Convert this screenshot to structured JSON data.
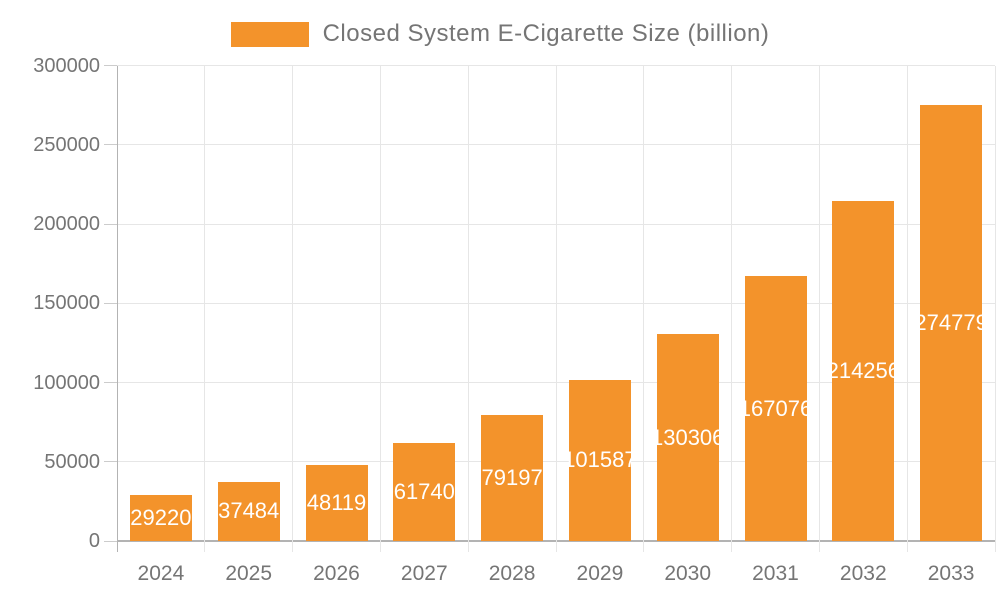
{
  "legend": {
    "label": "Closed System E-Cigarette Size (billion)"
  },
  "colors": {
    "bar": "#F3932B",
    "axis_text": "#757575",
    "gridline": "#E6E6E6",
    "axis_line": "#B3B3B3",
    "tick": "#CCCCCC",
    "bar_label": "#FFFFFF",
    "background": "#FFFFFF"
  },
  "chart_data": {
    "type": "bar",
    "title": "",
    "series_name": "Closed System E-Cigarette Size (billion)",
    "categories": [
      "2024",
      "2025",
      "2026",
      "2027",
      "2028",
      "2029",
      "2030",
      "2031",
      "2032",
      "2033"
    ],
    "values": [
      29220,
      37484,
      48119,
      61740,
      79197,
      101587,
      130306,
      167076,
      214256,
      274779
    ],
    "xlabel": "",
    "ylabel": "",
    "ylim": [
      0,
      300000
    ],
    "ytick_step": 50000,
    "ytick_labels": [
      "0",
      "50000",
      "100000",
      "150000",
      "200000",
      "250000",
      "300000"
    ],
    "grid": true,
    "legend_position": "top",
    "bar_value_labels": "inside-center-white"
  }
}
